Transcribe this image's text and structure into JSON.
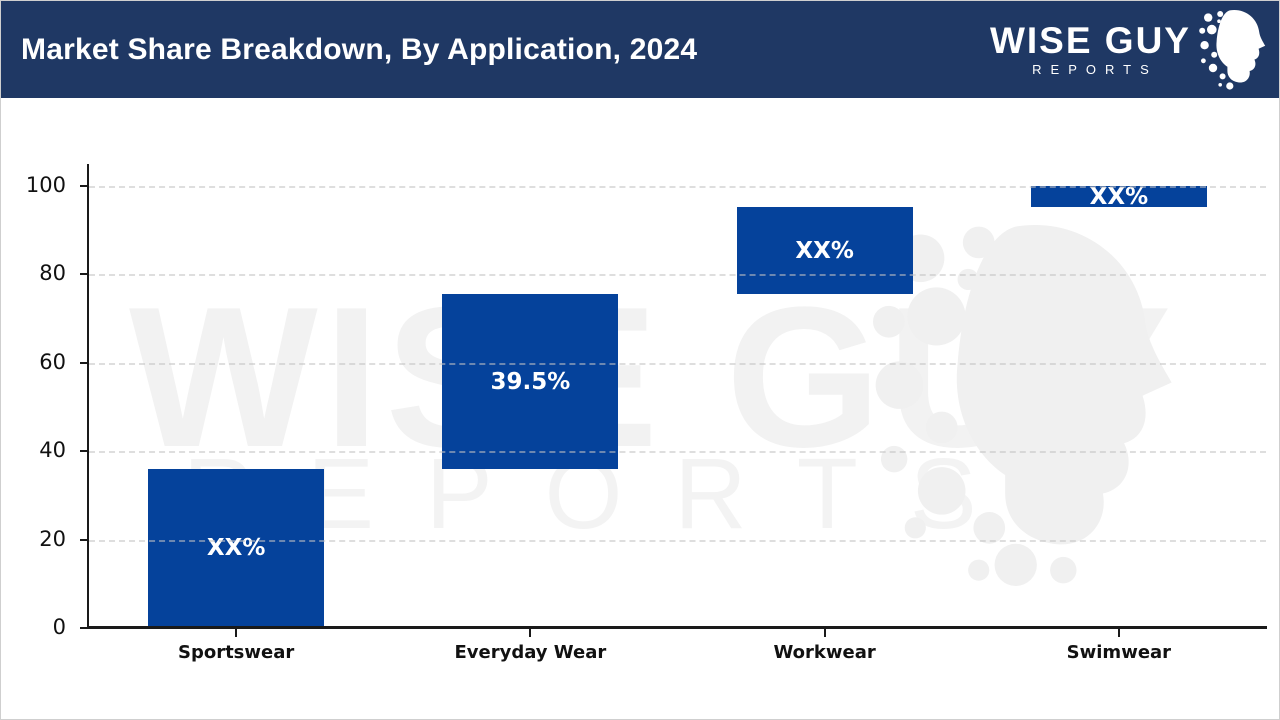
{
  "header": {
    "title": "Market Share Breakdown, By Application, 2024",
    "logo": {
      "line1": "WISE GUY",
      "line2": "REPORTS"
    }
  },
  "watermark": {
    "line1": "WISE GUY",
    "line2": "REPORTS"
  },
  "colors": {
    "header_bg": "#1f3864",
    "bar": "#05429b",
    "grid": "#dcdcdc",
    "axis": "#1a1a1a",
    "bar_label_text": "#ffffff",
    "title_text": "#ffffff",
    "watermark": "#f2f2f2"
  },
  "chart_data": {
    "type": "bar",
    "subtype": "waterfall",
    "title": "Market Share Breakdown, By Application, 2024",
    "categories": [
      "Sportswear",
      "Everyday Wear",
      "Workwear",
      "Swimwear"
    ],
    "segments": [
      {
        "category": "Sportswear",
        "start": 0,
        "end": 36,
        "label": "XX%"
      },
      {
        "category": "Everyday Wear",
        "start": 36,
        "end": 75.5,
        "label": "39.5%"
      },
      {
        "category": "Workwear",
        "start": 75.5,
        "end": 95.2,
        "label": "XX%"
      },
      {
        "category": "Swimwear",
        "start": 95.2,
        "end": 100,
        "label": "XX%"
      }
    ],
    "xlabel": "",
    "ylabel": "",
    "ylim": [
      0,
      105
    ],
    "yticks": [
      0,
      20,
      40,
      60,
      80,
      100
    ],
    "grid": "horizontal-dashed",
    "legend": "none",
    "bar_color": "#05429b"
  }
}
